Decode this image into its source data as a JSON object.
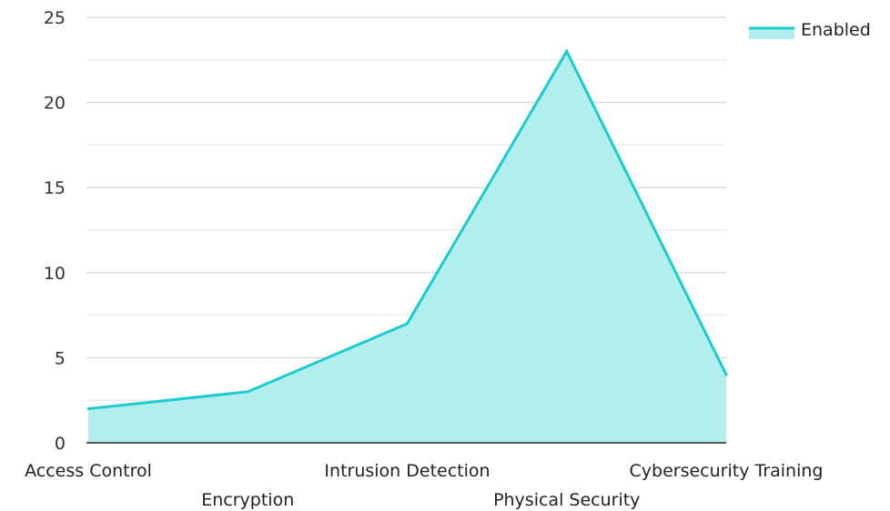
{
  "chart_data": {
    "type": "area",
    "categories": [
      "Access Control",
      "Encryption",
      "Intrusion Detection",
      "Physical Security",
      "Cybersecurity Training"
    ],
    "series": [
      {
        "name": "Enabled",
        "values": [
          2,
          3,
          7,
          23,
          4
        ]
      }
    ],
    "ylim": [
      0,
      25
    ],
    "yticks": [
      0,
      5,
      10,
      15,
      20,
      25
    ],
    "grid": true,
    "legend_position": "top-right",
    "colors": {
      "line": "#1ccccc",
      "fill": "#b2eeee",
      "grid_major": "#cccccc",
      "grid_minor": "#e6e6e6",
      "axis": "#222222"
    }
  }
}
